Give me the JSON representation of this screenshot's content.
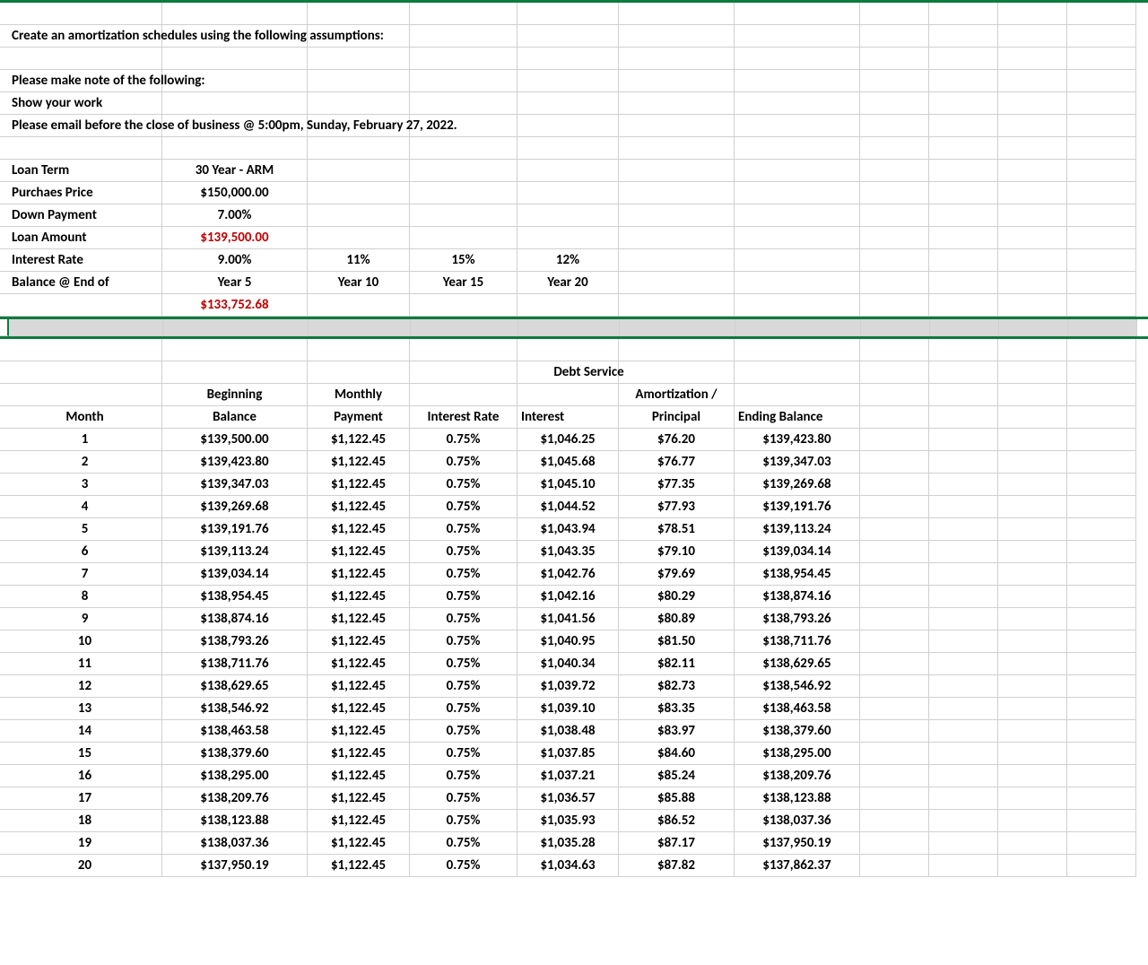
{
  "instructions": {
    "title": "Create an amortization schedules using the following assumptions:",
    "note_heading": "Please make note of the following:",
    "show_work": "Show your work",
    "deadline": "Please email before the close of business @ 5:00pm, Sunday, February 27, 2022."
  },
  "assumptions": {
    "loan_term_label": "Loan Term",
    "loan_term_value": "30 Year - ARM",
    "purchase_price_label": "Purchaes Price",
    "purchase_price_value": "$150,000.00",
    "down_payment_label": "Down Payment",
    "down_payment_value": "7.00%",
    "loan_amount_label": "Loan Amount",
    "loan_amount_value": "$139,500.00",
    "interest_rate_label": "Interest Rate",
    "interest_rate_value": "9.00%",
    "rate_y10": "11%",
    "rate_y15": "15%",
    "rate_y20": "12%",
    "balance_label": "Balance @ End of",
    "balance_y5": "Year 5",
    "balance_y10": "Year 10",
    "balance_y15": "Year 15",
    "balance_y20": "Year 20",
    "balance_y5_value": "$133,752.68"
  },
  "table": {
    "debt_service_header": "Debt Service",
    "columns": {
      "month": "Month",
      "beginning_balance_l1": "Beginning",
      "beginning_balance_l2": "Balance",
      "monthly_payment_l1": "Monthly",
      "monthly_payment_l2": "Payment",
      "interest_rate": "Interest Rate",
      "interest": "Interest",
      "amortization_l1": "Amortization /",
      "amortization_l2": "Principal",
      "ending_balance": "Ending Balance"
    },
    "rows": [
      {
        "month": "1",
        "begin": "$139,500.00",
        "payment": "$1,122.45",
        "rate": "0.75%",
        "interest": "$1,046.25",
        "principal": "$76.20",
        "end": "$139,423.80"
      },
      {
        "month": "2",
        "begin": "$139,423.80",
        "payment": "$1,122.45",
        "rate": "0.75%",
        "interest": "$1,045.68",
        "principal": "$76.77",
        "end": "$139,347.03"
      },
      {
        "month": "3",
        "begin": "$139,347.03",
        "payment": "$1,122.45",
        "rate": "0.75%",
        "interest": "$1,045.10",
        "principal": "$77.35",
        "end": "$139,269.68"
      },
      {
        "month": "4",
        "begin": "$139,269.68",
        "payment": "$1,122.45",
        "rate": "0.75%",
        "interest": "$1,044.52",
        "principal": "$77.93",
        "end": "$139,191.76"
      },
      {
        "month": "5",
        "begin": "$139,191.76",
        "payment": "$1,122.45",
        "rate": "0.75%",
        "interest": "$1,043.94",
        "principal": "$78.51",
        "end": "$139,113.24"
      },
      {
        "month": "6",
        "begin": "$139,113.24",
        "payment": "$1,122.45",
        "rate": "0.75%",
        "interest": "$1,043.35",
        "principal": "$79.10",
        "end": "$139,034.14"
      },
      {
        "month": "7",
        "begin": "$139,034.14",
        "payment": "$1,122.45",
        "rate": "0.75%",
        "interest": "$1,042.76",
        "principal": "$79.69",
        "end": "$138,954.45"
      },
      {
        "month": "8",
        "begin": "$138,954.45",
        "payment": "$1,122.45",
        "rate": "0.75%",
        "interest": "$1,042.16",
        "principal": "$80.29",
        "end": "$138,874.16"
      },
      {
        "month": "9",
        "begin": "$138,874.16",
        "payment": "$1,122.45",
        "rate": "0.75%",
        "interest": "$1,041.56",
        "principal": "$80.89",
        "end": "$138,793.26"
      },
      {
        "month": "10",
        "begin": "$138,793.26",
        "payment": "$1,122.45",
        "rate": "0.75%",
        "interest": "$1,040.95",
        "principal": "$81.50",
        "end": "$138,711.76"
      },
      {
        "month": "11",
        "begin": "$138,711.76",
        "payment": "$1,122.45",
        "rate": "0.75%",
        "interest": "$1,040.34",
        "principal": "$82.11",
        "end": "$138,629.65"
      },
      {
        "month": "12",
        "begin": "$138,629.65",
        "payment": "$1,122.45",
        "rate": "0.75%",
        "interest": "$1,039.72",
        "principal": "$82.73",
        "end": "$138,546.92"
      },
      {
        "month": "13",
        "begin": "$138,546.92",
        "payment": "$1,122.45",
        "rate": "0.75%",
        "interest": "$1,039.10",
        "principal": "$83.35",
        "end": "$138,463.58"
      },
      {
        "month": "14",
        "begin": "$138,463.58",
        "payment": "$1,122.45",
        "rate": "0.75%",
        "interest": "$1,038.48",
        "principal": "$83.97",
        "end": "$138,379.60"
      },
      {
        "month": "15",
        "begin": "$138,379.60",
        "payment": "$1,122.45",
        "rate": "0.75%",
        "interest": "$1,037.85",
        "principal": "$84.60",
        "end": "$138,295.00"
      },
      {
        "month": "16",
        "begin": "$138,295.00",
        "payment": "$1,122.45",
        "rate": "0.75%",
        "interest": "$1,037.21",
        "principal": "$85.24",
        "end": "$138,209.76"
      },
      {
        "month": "17",
        "begin": "$138,209.76",
        "payment": "$1,122.45",
        "rate": "0.75%",
        "interest": "$1,036.57",
        "principal": "$85.88",
        "end": "$138,123.88"
      },
      {
        "month": "18",
        "begin": "$138,123.88",
        "payment": "$1,122.45",
        "rate": "0.75%",
        "interest": "$1,035.93",
        "principal": "$86.52",
        "end": "$138,037.36"
      },
      {
        "month": "19",
        "begin": "$138,037.36",
        "payment": "$1,122.45",
        "rate": "0.75%",
        "interest": "$1,035.28",
        "principal": "$87.17",
        "end": "$137,950.19"
      },
      {
        "month": "20",
        "begin": "$137,950.19",
        "payment": "$1,122.45",
        "rate": "0.75%",
        "interest": "$1,034.63",
        "principal": "$87.82",
        "end": "$137,862.37"
      }
    ]
  },
  "colors": {
    "grid": "#d0d0d0",
    "green": "#0d7a3f",
    "red": "#c00000",
    "grey": "#d9d9d9"
  }
}
